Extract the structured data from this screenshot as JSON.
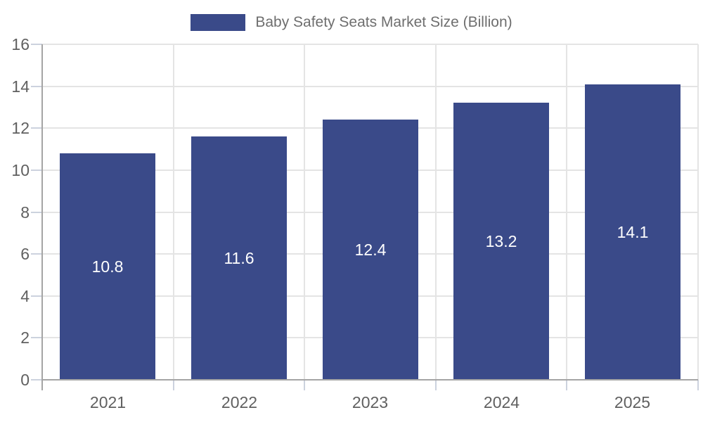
{
  "chart_data": {
    "type": "bar",
    "title": "Baby Safety Seats Market Size (Billion)",
    "legend": [
      "Baby Safety Seats Market Size (Billion)"
    ],
    "legend_position": "top",
    "categories": [
      "2021",
      "2022",
      "2023",
      "2024",
      "2025"
    ],
    "values": [
      10.8,
      11.6,
      12.4,
      13.2,
      14.1
    ],
    "value_labels": [
      "10.8",
      "11.6",
      "12.4",
      "13.2",
      "14.1"
    ],
    "xlabel": "",
    "ylabel": "",
    "ylim": [
      0,
      16
    ],
    "yticks": [
      0,
      2,
      4,
      6,
      8,
      10,
      12,
      14,
      16
    ],
    "grid": true,
    "colors": {
      "bar": "#3A4A89",
      "bar_value_label": "#ffffff",
      "axis_line": "#a5a5a5",
      "gridline": "#e4e4e4",
      "axis_tick": "#ccd2de",
      "tick_label": "#606060",
      "legend_text": "#6e6e6e",
      "background": "#ffffff"
    }
  }
}
